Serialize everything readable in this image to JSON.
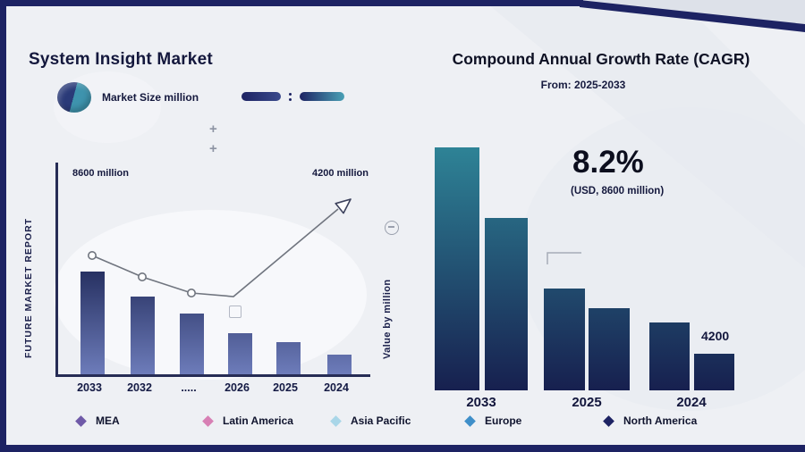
{
  "header": {
    "left_title": "System Insight Market",
    "right_title": "Compound Annual Growth Rate (CAGR)",
    "right_subtitle": "From: 2025-2033"
  },
  "left_panel": {
    "legend_label": "Market Size million",
    "side_label": "FUTURE MARKET REPORT",
    "top_left_label": "8600 million",
    "top_right_label": "4200 million"
  },
  "right_panel": {
    "kpi_value": "8.2%",
    "kpi_note": "(USD, 8600 million)",
    "side_label": "Value by million",
    "bar_annotation": "4200"
  },
  "bottom_legend": {
    "items": [
      {
        "label": "MEA",
        "color": "#6f5aa8"
      },
      {
        "label": "Latin America",
        "color": "#d77fb4"
      },
      {
        "label": "Asia Pacific",
        "color": "#a9d6e8"
      },
      {
        "label": "Europe",
        "color": "#3f8fc9"
      },
      {
        "label": "North America",
        "color": "#1d2363"
      }
    ]
  },
  "chart_data": [
    {
      "type": "bar",
      "title": "System Insight Market",
      "legend": [
        "Market Size million"
      ],
      "categories": [
        "2033",
        "2032",
        ".....",
        "2026",
        "2025",
        "2024"
      ],
      "values_relative": [
        100,
        76,
        59,
        40,
        31,
        19
      ],
      "values_million_est": [
        8600,
        7300,
        6400,
        5300,
        4900,
        4200
      ],
      "labeled_points": {
        "2033": "8600 million",
        "2024": "4200 million"
      },
      "overlay": {
        "type": "line",
        "markers_on": [
          "2033",
          "2032",
          "....."
        ],
        "description": "trend line descends across the first three bars then an outlined arrow rises toward the 4200 million label"
      },
      "ylabel": "FUTURE MARKET REPORT",
      "grid": false
    },
    {
      "type": "bar",
      "title": "Compound Annual Growth Rate (CAGR)",
      "subtitle": "From: 2025-2033",
      "categories": [
        "2033",
        "2025",
        "2024"
      ],
      "series": [
        {
          "name": "primary",
          "values_relative": [
            100,
            42,
            28
          ]
        },
        {
          "name": "secondary",
          "values_relative": [
            71,
            34,
            15
          ]
        }
      ],
      "annotations": [
        {
          "text": "4200",
          "category": "2024"
        }
      ],
      "kpi": {
        "value": "8.2%",
        "note": "(USD, 8600 million)"
      },
      "ylabel": "Value by million",
      "grid": false
    }
  ]
}
